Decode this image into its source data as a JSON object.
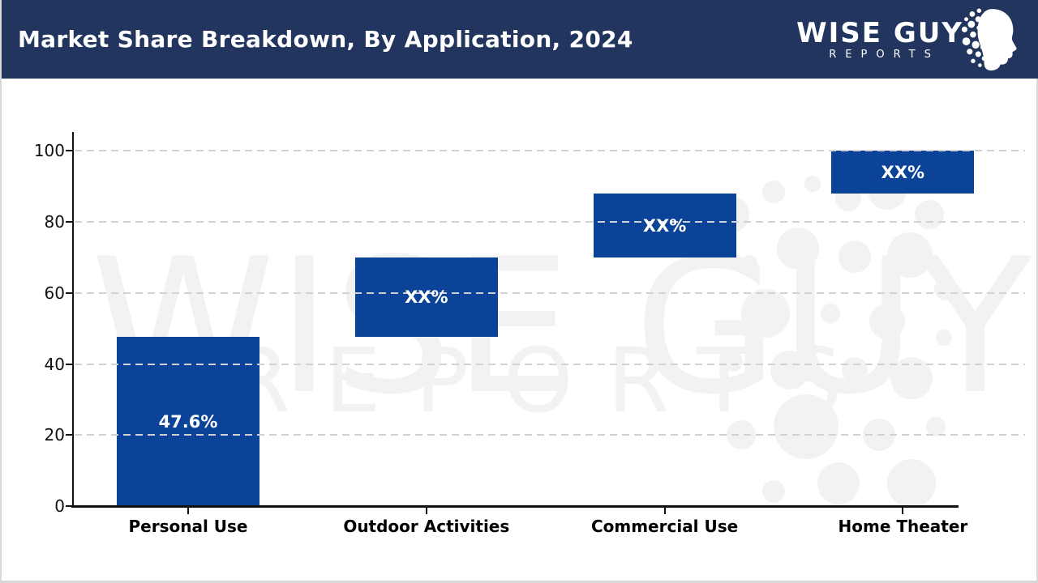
{
  "header": {
    "title": "Market Share Breakdown, By Application, 2024",
    "logo": {
      "line1": "WISE GUY",
      "line2": "REPORTS"
    }
  },
  "watermark": {
    "line1": "WISE GUY",
    "line2": "REPORTS"
  },
  "chart_data": {
    "type": "bar",
    "subtype": "floating-segment / waterfall-style breakdown, values sum to 100%",
    "title": "Market Share Breakdown, By Application, 2024",
    "categories": [
      "Personal Use",
      "Outdoor Activities",
      "Commercial Use",
      "Home Theater"
    ],
    "segments": [
      [
        0,
        47.6
      ],
      [
        47.6,
        70
      ],
      [
        70,
        88
      ],
      [
        88,
        100
      ]
    ],
    "values_pct": [
      47.6,
      22.4,
      18,
      12
    ],
    "bar_labels": [
      "47.6%",
      "XX%",
      "XX%",
      "XX%"
    ],
    "note": "Only the first segment's value is shown (47.6%); remaining labels are masked as XX% in the source image; segment bounds estimated from gridlines",
    "yticks": [
      "0",
      "20",
      "40",
      "60",
      "80",
      "100"
    ],
    "ylim": [
      0,
      105
    ],
    "xlabel": "",
    "ylabel": "",
    "grid": {
      "horizontal": true,
      "style": "dashed",
      "above_bars": true
    },
    "legend": "none",
    "colors": {
      "bar": "#0b4398",
      "grid": "#d2d2d2",
      "axis": "#111111",
      "bar_label": "#ffffff",
      "category_label": "#000000",
      "header_bg": "#21355f",
      "watermark": "#f2f2f4"
    }
  }
}
